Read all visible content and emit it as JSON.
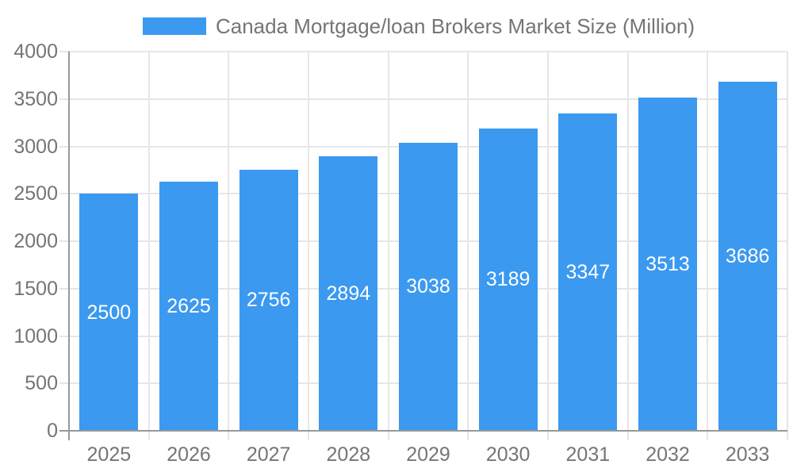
{
  "legend": {
    "label": "Canada Mortgage/loan Brokers Market Size (Million)"
  },
  "chart_data": {
    "type": "bar",
    "title": "Canada Mortgage/loan Brokers Market Size (Million)",
    "categories": [
      "2025",
      "2026",
      "2027",
      "2028",
      "2029",
      "2030",
      "2031",
      "2032",
      "2033"
    ],
    "values": [
      2500,
      2625,
      2756,
      2894,
      3038,
      3189,
      3347,
      3513,
      3686
    ],
    "series": [
      {
        "name": "Canada Mortgage/loan Brokers Market Size (Million)",
        "values": [
          2500,
          2625,
          2756,
          2894,
          3038,
          3189,
          3347,
          3513,
          3686
        ]
      }
    ],
    "xlabel": "",
    "ylabel": "",
    "ylim": [
      0,
      4000
    ],
    "yticks": [
      0,
      500,
      1000,
      1500,
      2000,
      2500,
      3000,
      3500,
      4000
    ],
    "grid": true,
    "legend_position": "top",
    "bar_value_labels_inside": true,
    "colors": {
      "bar": "#3b99f0",
      "bar_label": "#ffffff",
      "axis_text": "#757575",
      "axis_line": "#999999",
      "gridline": "#e6e6e6",
      "background": "#ffffff"
    }
  }
}
